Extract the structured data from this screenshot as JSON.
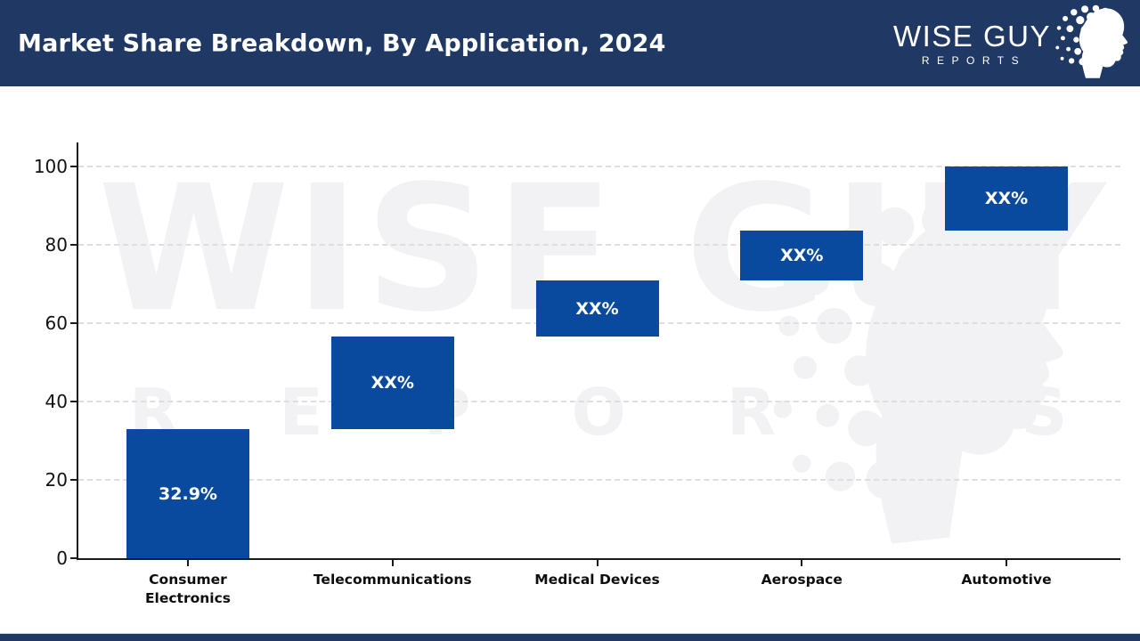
{
  "header": {
    "title": "Market Share Breakdown, By Application, 2024",
    "logo": {
      "wordmark": "WISE GUY",
      "subtext": "REPORTS"
    }
  },
  "watermark": {
    "line1": "WISE GUY",
    "line2": "R E P O R T S"
  },
  "colors": {
    "header_bg": "#1f3864",
    "footer_bg": "#1f3864",
    "bar": "#0a4a9e",
    "bar_label_text": "#ffffff",
    "grid": "#dedede",
    "axis": "#1a1a1a",
    "watermark": "#f2f2f4"
  },
  "chart_data": {
    "type": "bar",
    "subtype": "waterfall-floating-bars",
    "title": "Market Share Breakdown, By Application, 2024",
    "xlabel": "",
    "ylabel": "",
    "ylim": [
      0,
      106
    ],
    "yticks": [
      0,
      20,
      40,
      60,
      80,
      100
    ],
    "grid": "horizontal-dashed",
    "legend": "none",
    "categories": [
      "Consumer Electronics",
      "Telecommunications",
      "Medical Devices",
      "Aerospace",
      "Automotive"
    ],
    "series": [
      {
        "name": "Market Share (%)",
        "segments": [
          {
            "category": "Consumer Electronics",
            "start": 0,
            "end": 32.9,
            "label": "32.9%"
          },
          {
            "category": "Telecommunications",
            "start": 32.9,
            "end": 56.5,
            "label": "XX%"
          },
          {
            "category": "Medical Devices",
            "start": 56.5,
            "end": 70.8,
            "label": "XX%"
          },
          {
            "category": "Aerospace",
            "start": 70.8,
            "end": 83.6,
            "label": "XX%"
          },
          {
            "category": "Automotive",
            "start": 83.6,
            "end": 100,
            "label": "XX%"
          }
        ]
      }
    ]
  }
}
